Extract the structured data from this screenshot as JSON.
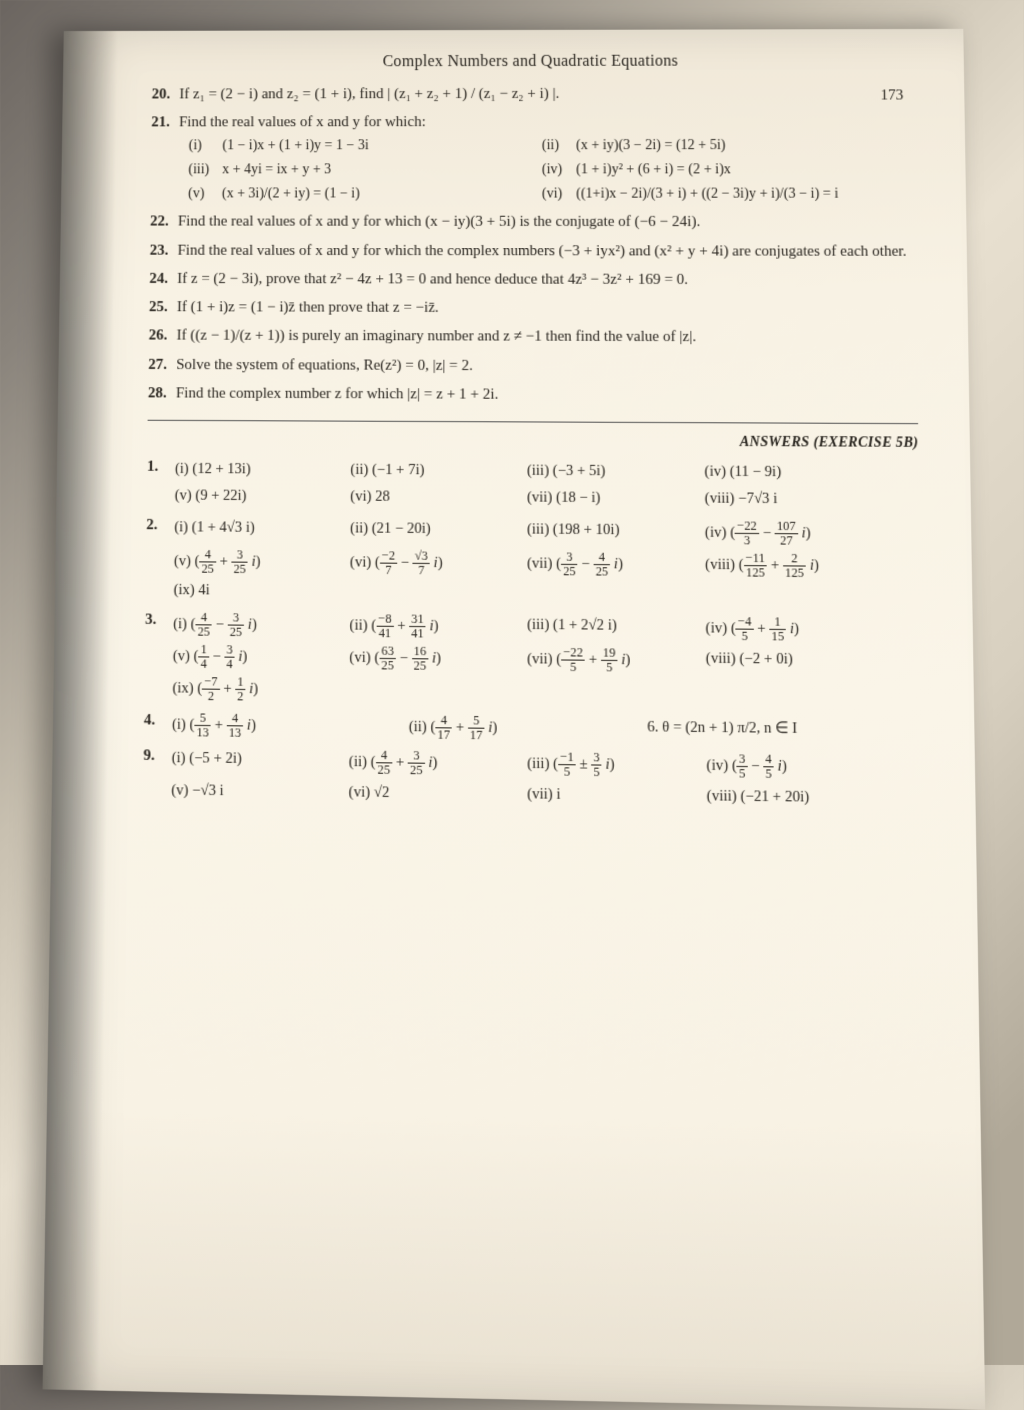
{
  "chapter": "Complex Numbers and Quadratic Equations",
  "pageNumber": "173",
  "questions": [
    {
      "n": "20.",
      "text": "If z₁ = (2 − i) and z₂ = (1 + i), find | (z₁ + z₂ + 1) / (z₁ − z₂ + i) |."
    },
    {
      "n": "21.",
      "text": "Find the real values of x and y for which:",
      "subs": [
        {
          "n": "(i)",
          "t": "(1 − i)x + (1 + i)y = 1 − 3i"
        },
        {
          "n": "(ii)",
          "t": "(x + iy)(3 − 2i) = (12 + 5i)"
        },
        {
          "n": "(iii)",
          "t": "x + 4yi = ix + y + 3"
        },
        {
          "n": "(iv)",
          "t": "(1 + i)y² + (6 + i) = (2 + i)x"
        },
        {
          "n": "(v)",
          "t": "(x + 3i)/(2 + iy) = (1 − i)"
        },
        {
          "n": "(vi)",
          "t": "((1+i)x − 2i)/(3 + i) + ((2 − 3i)y + i)/(3 − i) = i"
        }
      ]
    },
    {
      "n": "22.",
      "text": "Find the real values of x and y for which (x − iy)(3 + 5i) is the conjugate of (−6 − 24i)."
    },
    {
      "n": "23.",
      "text": "Find the real values of x and y for which the complex numbers (−3 + iyx²) and (x² + y + 4i) are conjugates of each other."
    },
    {
      "n": "24.",
      "text": "If z = (2 − 3i), prove that z² − 4z + 13 = 0 and hence deduce that 4z³ − 3z² + 169 = 0."
    },
    {
      "n": "25.",
      "text": "If (1 + i)z = (1 − i)z̄ then prove that z = −iz̄."
    },
    {
      "n": "26.",
      "text": "If ((z − 1)/(z + 1)) is purely an imaginary number and z ≠ −1 then find the value of |z|."
    },
    {
      "n": "27.",
      "text": "Solve the system of equations, Re(z²) = 0, |z| = 2."
    },
    {
      "n": "28.",
      "text": "Find the complex number z for which |z| = z + 1 + 2i."
    }
  ],
  "answersTitle": "ANSWERS (EXERCISE 5B)",
  "answers": [
    {
      "n": "1.",
      "items": [
        {
          "k": "(i)",
          "v": "(12 + 13i)"
        },
        {
          "k": "(ii)",
          "v": "(−1 + 7i)"
        },
        {
          "k": "(iii)",
          "v": "(−3 + 5i)"
        },
        {
          "k": "(iv)",
          "v": "(11 − 9i)"
        },
        {
          "k": "(v)",
          "v": "(9 + 22i)"
        },
        {
          "k": "(vi)",
          "v": "28"
        },
        {
          "k": "(vii)",
          "v": "(18 − i)"
        },
        {
          "k": "(viii)",
          "v": "−7√3 i"
        }
      ]
    },
    {
      "n": "2.",
      "items": [
        {
          "k": "(i)",
          "v": "(1 + 4√3 i)"
        },
        {
          "k": "(ii)",
          "v": "(21 − 20i)"
        },
        {
          "k": "(iii)",
          "v": "(198 + 10i)"
        },
        {
          "k": "(iv)",
          "frac": [
            "−22",
            "3",
            "−",
            "107",
            "27"
          ]
        },
        {
          "k": "(v)",
          "frac": [
            "4",
            "25",
            "+",
            "3",
            "25"
          ]
        },
        {
          "k": "(vi)",
          "frac": [
            "−2",
            "7",
            "−",
            "√3",
            "7"
          ]
        },
        {
          "k": "(vii)",
          "frac": [
            "3",
            "25",
            "−",
            "4",
            "25"
          ]
        },
        {
          "k": "(viii)",
          "frac": [
            "−11",
            "125",
            "+",
            "2",
            "125"
          ]
        },
        {
          "k": "(ix)",
          "v": "4i"
        }
      ]
    },
    {
      "n": "3.",
      "items": [
        {
          "k": "(i)",
          "frac": [
            "4",
            "25",
            "−",
            "3",
            "25"
          ]
        },
        {
          "k": "(ii)",
          "frac": [
            "−8",
            "41",
            "+",
            "31",
            "41"
          ]
        },
        {
          "k": "(iii)",
          "v": "(1 + 2√2 i)"
        },
        {
          "k": "(iv)",
          "frac": [
            "−4",
            "5",
            "+",
            "1",
            "15"
          ]
        },
        {
          "k": "(v)",
          "frac": [
            "1",
            "4",
            "−",
            "3",
            "4"
          ]
        },
        {
          "k": "(vi)",
          "frac": [
            "63",
            "25",
            "−",
            "16",
            "25"
          ]
        },
        {
          "k": "(vii)",
          "frac": [
            "−22",
            "5",
            "+",
            "19",
            "5"
          ]
        },
        {
          "k": "(viii)",
          "v": "(−2 + 0i)"
        },
        {
          "k": "(ix)",
          "frac": [
            "−7",
            "2",
            "+",
            "1",
            "2"
          ]
        }
      ]
    },
    {
      "n": "4.",
      "items": [
        {
          "k": "(i)",
          "frac": [
            "5",
            "13",
            "+",
            "4",
            "13"
          ]
        },
        {
          "k": "(ii)",
          "frac": [
            "4",
            "17",
            "+",
            "5",
            "17"
          ]
        },
        {
          "k": "6.",
          "v": "θ = (2n + 1) π/2, n ∈ I"
        }
      ]
    },
    {
      "n": "9.",
      "items": [
        {
          "k": "(i)",
          "v": "(−5 + 2i)"
        },
        {
          "k": "(ii)",
          "frac": [
            "4",
            "25",
            "+",
            "3",
            "25"
          ]
        },
        {
          "k": "(iii)",
          "frac": [
            "−1",
            "5",
            "±",
            "3",
            "5"
          ]
        },
        {
          "k": "(iv)",
          "frac": [
            "3",
            "5",
            "−",
            "4",
            "5"
          ]
        },
        {
          "k": "(v)",
          "v": "−√3 i"
        },
        {
          "k": "(vi)",
          "v": "√2"
        },
        {
          "k": "(vii)",
          "v": "i"
        },
        {
          "k": "(viii)",
          "v": "(−21 + 20i)"
        }
      ]
    }
  ]
}
